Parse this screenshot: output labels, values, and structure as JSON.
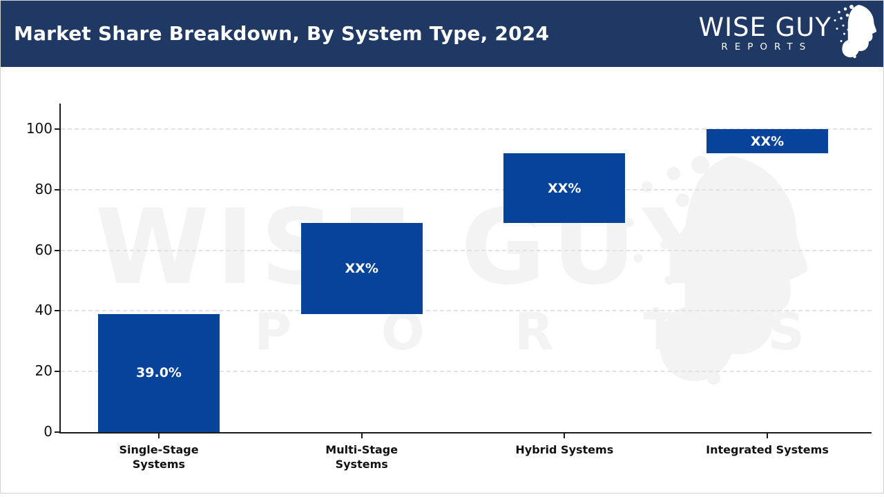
{
  "header": {
    "title": "Market Share Breakdown, By System Type, 2024",
    "logo": {
      "line1": "WISE GUY",
      "line2": "REPORTS"
    },
    "background_color": "#203864"
  },
  "watermark": {
    "line1": "WISE GUY",
    "line2": "P O R T S"
  },
  "chart_data": {
    "type": "bar",
    "subtype": "waterfall",
    "title": "Market Share Breakdown, By System Type, 2024",
    "xlabel": "",
    "ylabel": "",
    "ylim": [
      0,
      100
    ],
    "y_ticks": [
      0,
      20,
      40,
      60,
      80,
      100
    ],
    "grid": "horizontal dashed",
    "legend": "none",
    "categories": [
      "Single-Stage Systems",
      "Multi-Stage Systems",
      "Hybrid Systems",
      "Integrated Systems"
    ],
    "category_lines": [
      [
        "Single-Stage",
        "Systems"
      ],
      [
        "Multi-Stage",
        "Systems"
      ],
      [
        "Hybrid Systems"
      ],
      [
        "Integrated Systems"
      ]
    ],
    "segments": [
      {
        "category": "Single-Stage Systems",
        "start": 0,
        "end": 39,
        "label": "39.0%"
      },
      {
        "category": "Multi-Stage Systems",
        "start": 39,
        "end": 69,
        "label": "XX%"
      },
      {
        "category": "Hybrid Systems",
        "start": 69,
        "end": 92,
        "label": "XX%"
      },
      {
        "category": "Integrated Systems",
        "start": 92,
        "end": 100,
        "label": "XX%"
      }
    ],
    "bar_color": "#08439b",
    "bar_label_color": "#ffffff",
    "axis_color": "#1a1a1a",
    "grid_color": "#e2e2e2",
    "watermark_color": "#f3f3f3"
  }
}
